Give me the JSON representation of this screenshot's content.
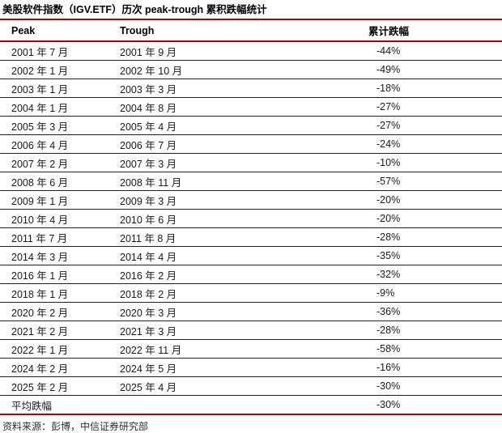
{
  "title": "美股软件指数（IGV.ETF）历次 peak-trough 累积跌幅统计",
  "table": {
    "columns": {
      "peak": "Peak",
      "trough": "Trough",
      "drawdown": "累计跌幅"
    },
    "rows": [
      {
        "peak": "2001 年 7 月",
        "trough": "2001 年 9 月",
        "drawdown": "-44%"
      },
      {
        "peak": "2002 年 1 月",
        "trough": "2002 年 10 月",
        "drawdown": "-49%"
      },
      {
        "peak": "2003 年 1 月",
        "trough": "2003 年 3 月",
        "drawdown": "-18%"
      },
      {
        "peak": "2004 年 1 月",
        "trough": "2004 年 8 月",
        "drawdown": "-27%"
      },
      {
        "peak": "2005 年 3 月",
        "trough": "2005 年 4 月",
        "drawdown": "-27%"
      },
      {
        "peak": "2006 年 4 月",
        "trough": "2006 年 7 月",
        "drawdown": "-24%"
      },
      {
        "peak": "2007 年 2 月",
        "trough": "2007 年 3 月",
        "drawdown": "-10%"
      },
      {
        "peak": "2008 年 6 月",
        "trough": "2008 年 11 月",
        "drawdown": "-57%"
      },
      {
        "peak": "2009 年 1 月",
        "trough": "2009 年 3 月",
        "drawdown": "-20%"
      },
      {
        "peak": "2010 年 4 月",
        "trough": "2010 年 6 月",
        "drawdown": "-20%"
      },
      {
        "peak": "2011 年 7 月",
        "trough": "2011 年 8 月",
        "drawdown": "-28%"
      },
      {
        "peak": "2014 年 3 月",
        "trough": "2014 年 4 月",
        "drawdown": "-35%"
      },
      {
        "peak": "2016 年 1 月",
        "trough": "2016 年 2 月",
        "drawdown": "-32%"
      },
      {
        "peak": "2018 年 1 月",
        "trough": "2018 年 2 月",
        "drawdown": "-9%"
      },
      {
        "peak": "2020 年 2 月",
        "trough": "2020 年 3 月",
        "drawdown": "-36%"
      },
      {
        "peak": "2021 年 2 月",
        "trough": "2021 年 3 月",
        "drawdown": "-28%"
      },
      {
        "peak": "2022 年 1 月",
        "trough": "2022 年 11 月",
        "drawdown": "-58%"
      },
      {
        "peak": "2024 年 2 月",
        "trough": "2024 年 5 月",
        "drawdown": "-16%"
      },
      {
        "peak": "2025 年 2 月",
        "trough": "2025 年 4 月",
        "drawdown": "-30%"
      }
    ],
    "summary_row": {
      "label": "平均跌幅",
      "trough": "",
      "drawdown": "-30%"
    }
  },
  "footer": {
    "source": "资料来源：彭博，中信证券研究部"
  },
  "colors": {
    "accent_red": "#b30000",
    "row_line": "#1f1f1f",
    "text": "#1a1a1a"
  }
}
